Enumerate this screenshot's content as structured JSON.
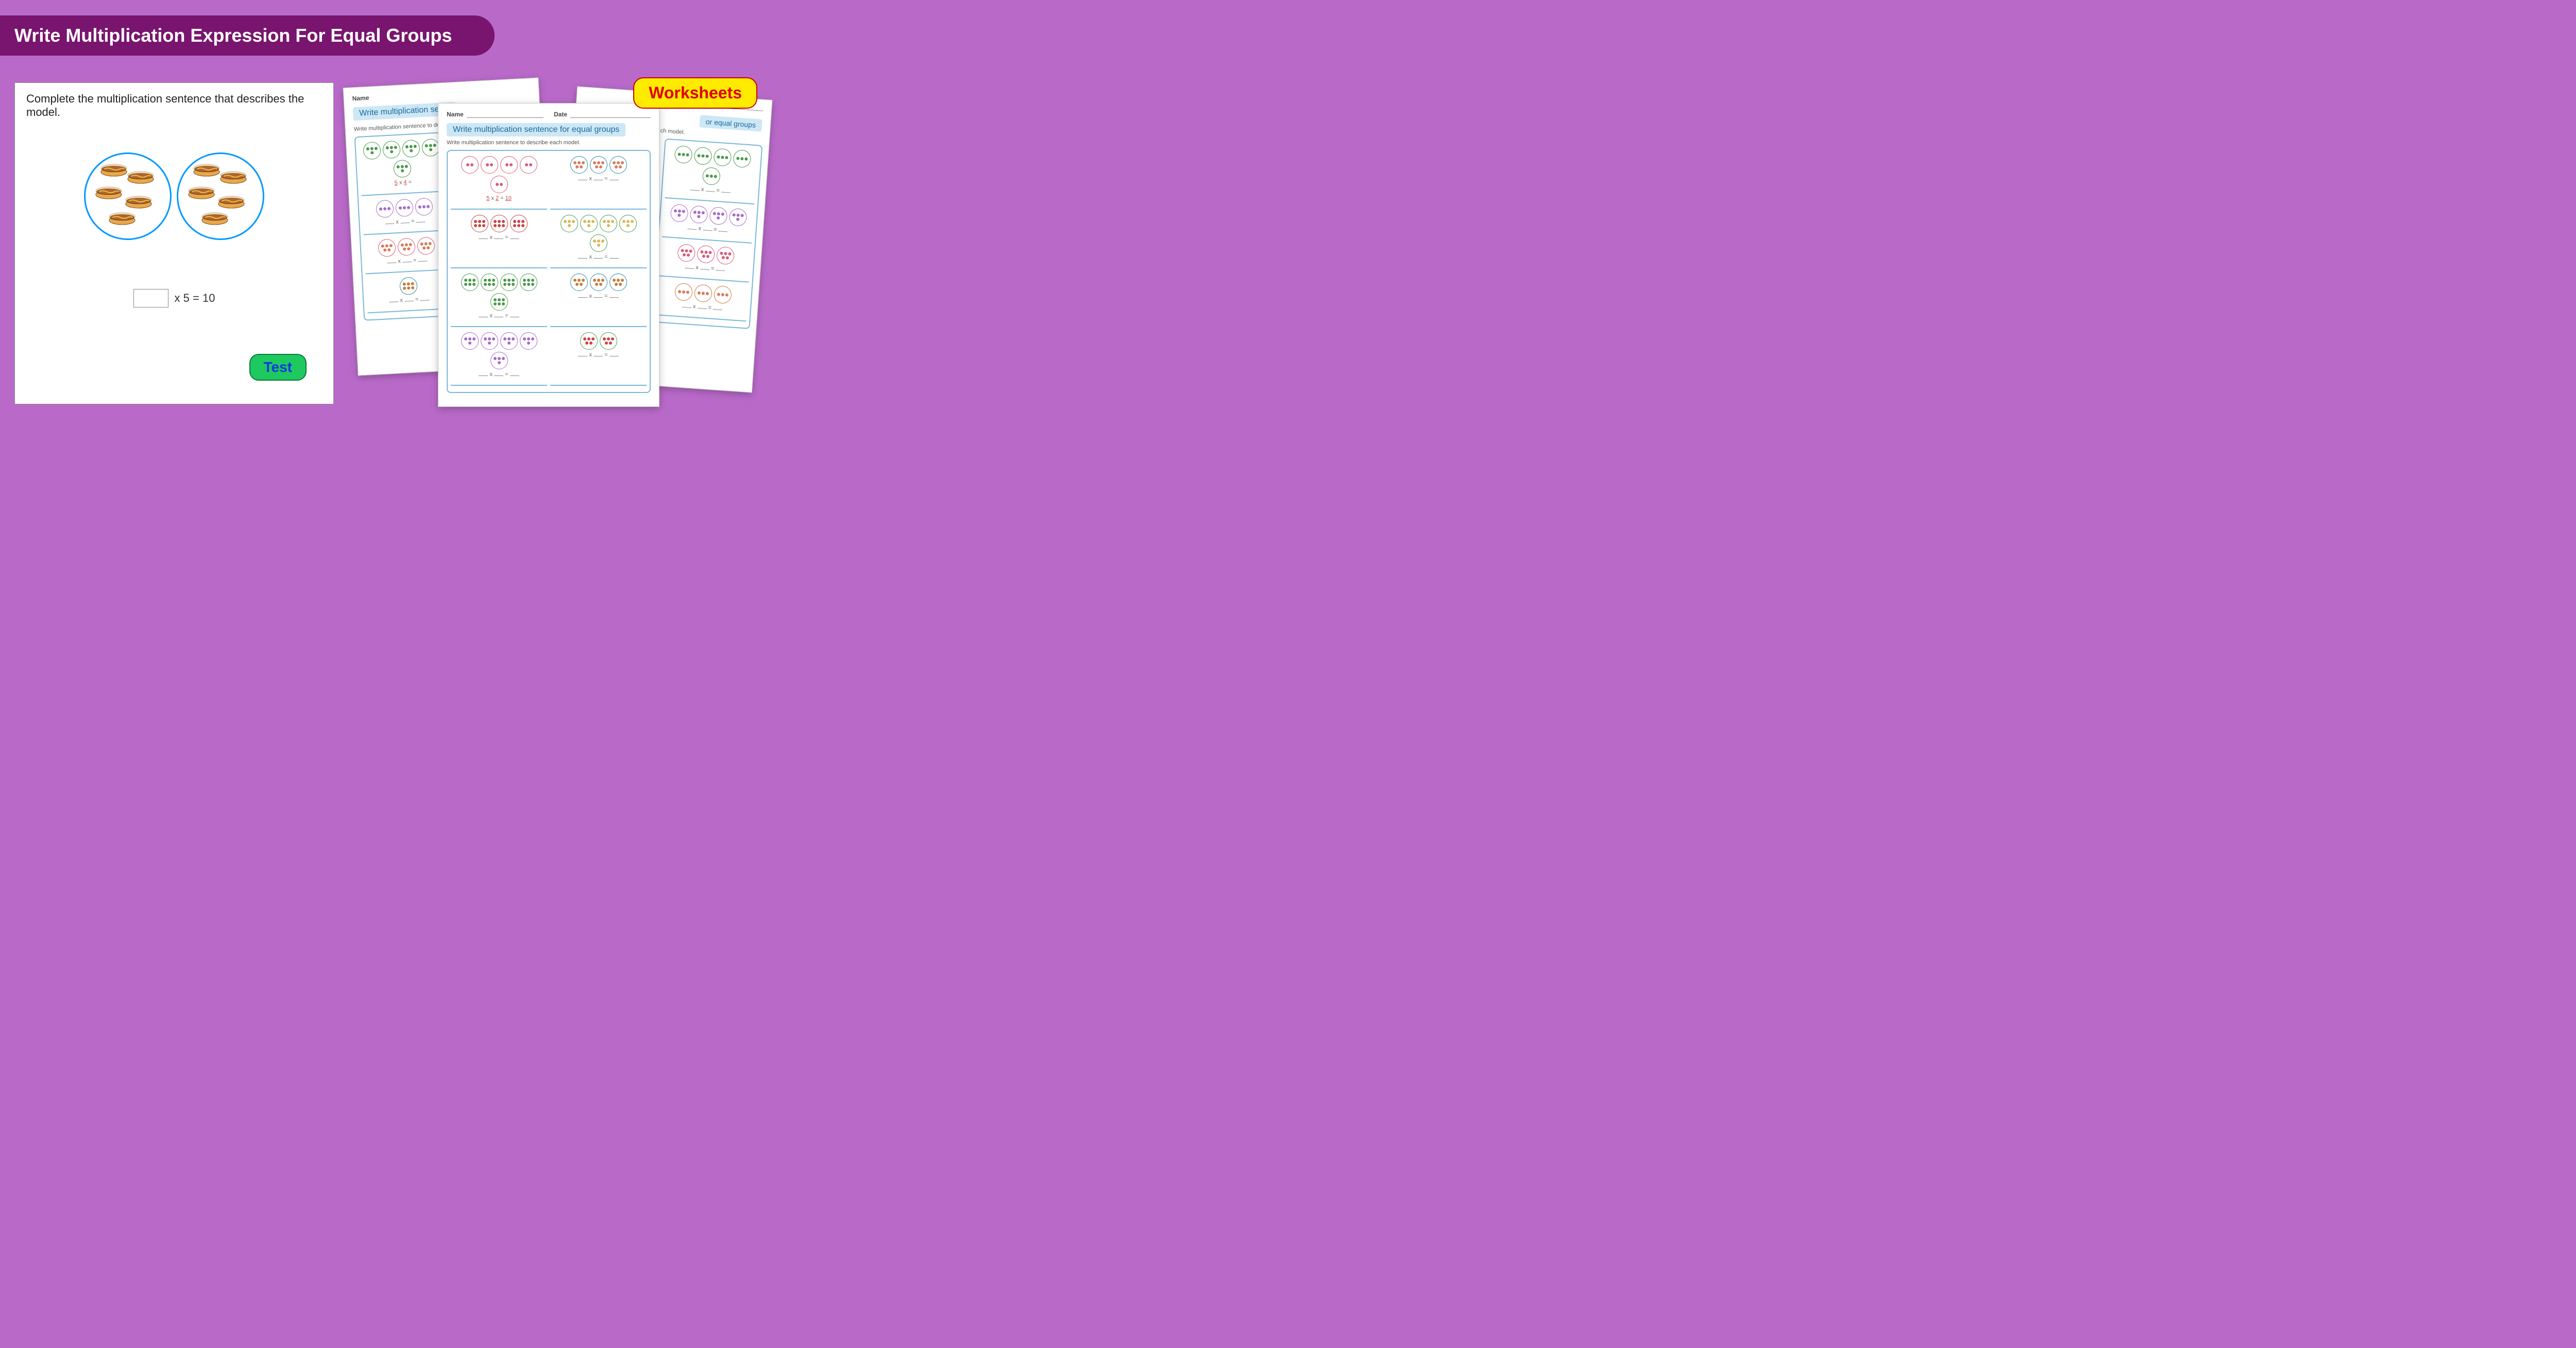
{
  "title": "Write Multiplication Expression For Equal Groups",
  "colors": {
    "page_bg": "#b96ac9",
    "title_bg": "#79156e",
    "title_text": "#ffffff",
    "panel_bg": "#ffffff",
    "panel_border": "#888888",
    "circle_border": "#0099ff",
    "test_bg": "#1ec95f",
    "test_text": "#0a3be0",
    "ws_btn_bg": "#ffeb00",
    "ws_btn_text": "#e00000",
    "ws_title_bg": "#cde7f5",
    "ws_title_text": "#1a6aa0",
    "ws_border": "#7ab8d8",
    "hotdog_bun": "#e8a84a",
    "hotdog_meat": "#8b3a1a",
    "hotdog_mustard": "#f5d142"
  },
  "main_panel": {
    "instruction": "Complete the multiplication sentence that describes the model.",
    "groups": 2,
    "items_per_group": 5,
    "expression_suffix": "x 5 = 10",
    "test_label": "Test"
  },
  "worksheets_button": "Worksheets",
  "worksheet_common": {
    "name_label": "Name",
    "date_label": "Date",
    "title": "Write multiplication sentence for equal groups",
    "subtitle": "Write multiplication sentence to describe each model.",
    "blank_expr": "____ x ____ = ____"
  },
  "front_worksheet": {
    "cells": [
      {
        "groups": 5,
        "per": 2,
        "color": "#d95b7a",
        "dot": "#d95b7a",
        "expr": "5  x  2  =  10",
        "filled": true
      },
      {
        "groups": 3,
        "per": 5,
        "color": "#2a8aa8",
        "dot": "#d97b5b",
        "expr": "____  x ____ = ____",
        "filled": false
      },
      {
        "groups": 3,
        "per": 6,
        "color": "#cc4444",
        "dot": "#cc4444",
        "expr": "____  x ____ = ____",
        "filled": false
      },
      {
        "groups": 5,
        "per": 4,
        "color": "#4a9a4a",
        "dot": "#d9b85b",
        "expr": "____  x ____ = ____",
        "filled": false
      },
      {
        "groups": 5,
        "per": 6,
        "color": "#4a9a4a",
        "dot": "#4a9a4a",
        "expr": "____  x ____ = ____",
        "filled": false
      },
      {
        "groups": 3,
        "per": 5,
        "color": "#2a8aa8",
        "dot": "#c97b3a",
        "expr": "____  x ____ = ____",
        "filled": false
      },
      {
        "groups": 5,
        "per": 4,
        "color": "#a96ac9",
        "dot": "#a96ac9",
        "expr": "____  x ____ = ____",
        "filled": false
      },
      {
        "groups": 2,
        "per": 5,
        "color": "#4a9a4a",
        "dot": "#cc4444",
        "expr": "____  x ____ = ____",
        "filled": false
      }
    ]
  },
  "back_left_worksheet": {
    "cells": [
      {
        "groups": 5,
        "per": 4,
        "color": "#4a9a4a",
        "dot": "#4a9a4a",
        "expr": "5  x  4  =",
        "filled": true
      },
      {
        "groups": 3,
        "per": 3,
        "color": "#a96ac9",
        "dot": "#a96ac9",
        "expr": "____ x ____ = ____",
        "filled": false
      },
      {
        "groups": 3,
        "per": 5,
        "color": "#d95b7a",
        "dot": "#d97b5b",
        "expr": "____ x ____ = ____",
        "filled": false
      },
      {
        "groups": 1,
        "per": 6,
        "color": "#2a8aa8",
        "dot": "#c97b3a",
        "expr": "____ x ____ = ____",
        "filled": false
      }
    ]
  },
  "back_right_worksheet": {
    "cells": [
      {
        "groups": 5,
        "per": 3,
        "color": "#4a9a4a",
        "dot": "#4a9a4a",
        "expr": "____ x ____ = ____",
        "filled": false
      },
      {
        "groups": 4,
        "per": 4,
        "color": "#a96ac9",
        "dot": "#a96ac9",
        "expr": "____ x ____ = ____",
        "filled": false
      },
      {
        "groups": 3,
        "per": 5,
        "color": "#d95b7a",
        "dot": "#d95b7a",
        "expr": "____ x ____ = ____",
        "filled": false
      },
      {
        "groups": 3,
        "per": 3,
        "color": "#c97b3a",
        "dot": "#d97b5b",
        "expr": "____ x ____ = ____",
        "filled": false
      }
    ]
  }
}
